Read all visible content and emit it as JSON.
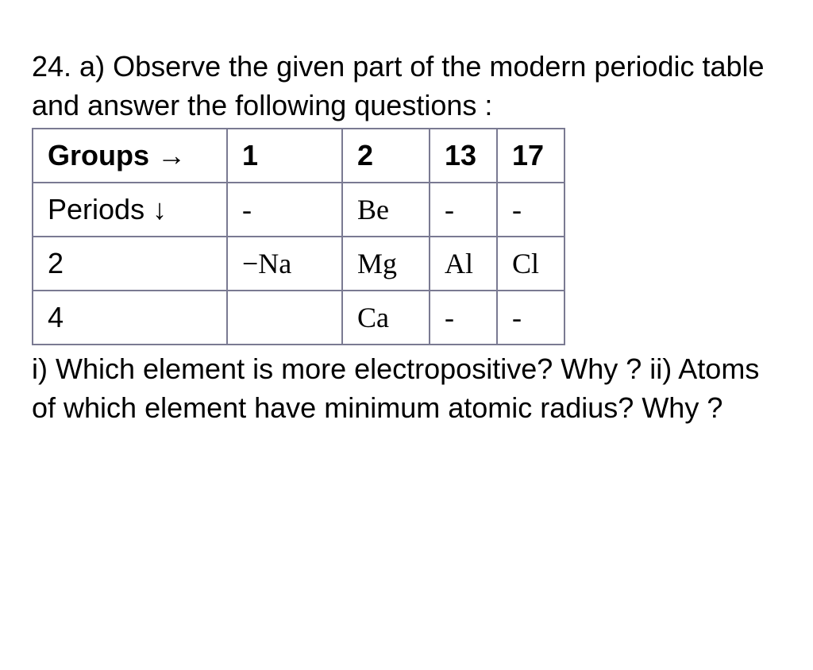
{
  "question": {
    "number_label": "24. a)",
    "intro": "Observe the given part of the modern periodic table and answer the following questions :"
  },
  "table": {
    "header_label": "Groups",
    "header_arrow": "→",
    "columns": [
      "1",
      "2",
      "13",
      "17"
    ],
    "periods_label": "Periods",
    "periods_arrow": "↓",
    "rows": [
      {
        "label_type": "periods",
        "cells": [
          "-",
          "Be",
          "-",
          "-"
        ]
      },
      {
        "label": "2",
        "cells": [
          "−Na",
          "Mg",
          "Al",
          "Cl"
        ]
      },
      {
        "label": "4",
        "cells": [
          "",
          "Ca",
          "-",
          "-"
        ]
      }
    ],
    "border_color": "#7a7a92",
    "cell_fontsize": 36,
    "header_fontweight": "bold"
  },
  "sub_questions": {
    "q1": "i) Which element is more electropositive? Why ?",
    "q2": "ii) Atoms of which element have minimum atomic radius? Why ?"
  },
  "styling": {
    "background_color": "#ffffff",
    "text_color": "#000000",
    "body_fontsize": 36
  }
}
